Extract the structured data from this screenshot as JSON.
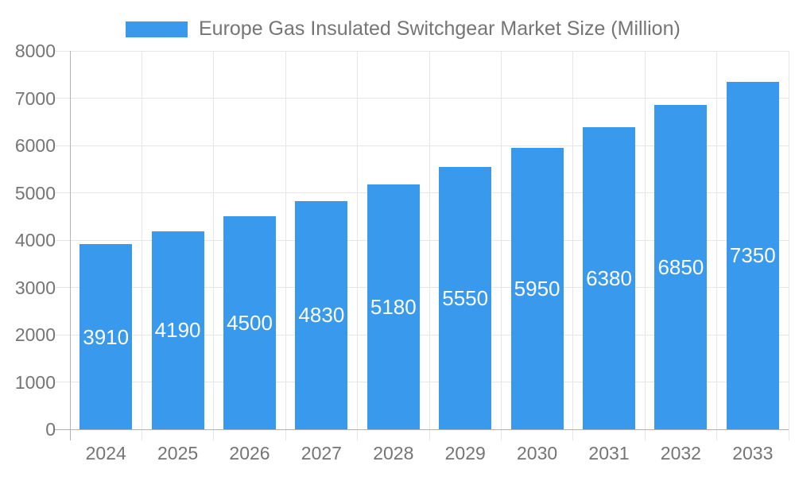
{
  "chart_data": {
    "type": "bar",
    "title": "Europe Gas Insulated Switchgear Market Size (Million)",
    "legend_entries": [
      "Europe Gas Insulated Switchgear Market Size (Million)"
    ],
    "legend_position": "top",
    "categories": [
      "2024",
      "2025",
      "2026",
      "2027",
      "2028",
      "2029",
      "2030",
      "2031",
      "2032",
      "2033"
    ],
    "values": [
      3910,
      4190,
      4500,
      4830,
      5180,
      5550,
      5950,
      6380,
      6850,
      7350
    ],
    "value_labels_position": "inside-center",
    "xlabel": "",
    "ylabel": "",
    "ylim": [
      0,
      8000
    ],
    "ytick_step": 1000,
    "yticks": [
      0,
      1000,
      2000,
      3000,
      4000,
      5000,
      6000,
      7000,
      8000
    ],
    "grid": true,
    "colors": {
      "bar": "#3999ec",
      "grid": "#e6e6e6",
      "axis": "#b3b3b3",
      "label_text": "#757575",
      "value_text": "#ffffff",
      "background": "#ffffff"
    }
  }
}
